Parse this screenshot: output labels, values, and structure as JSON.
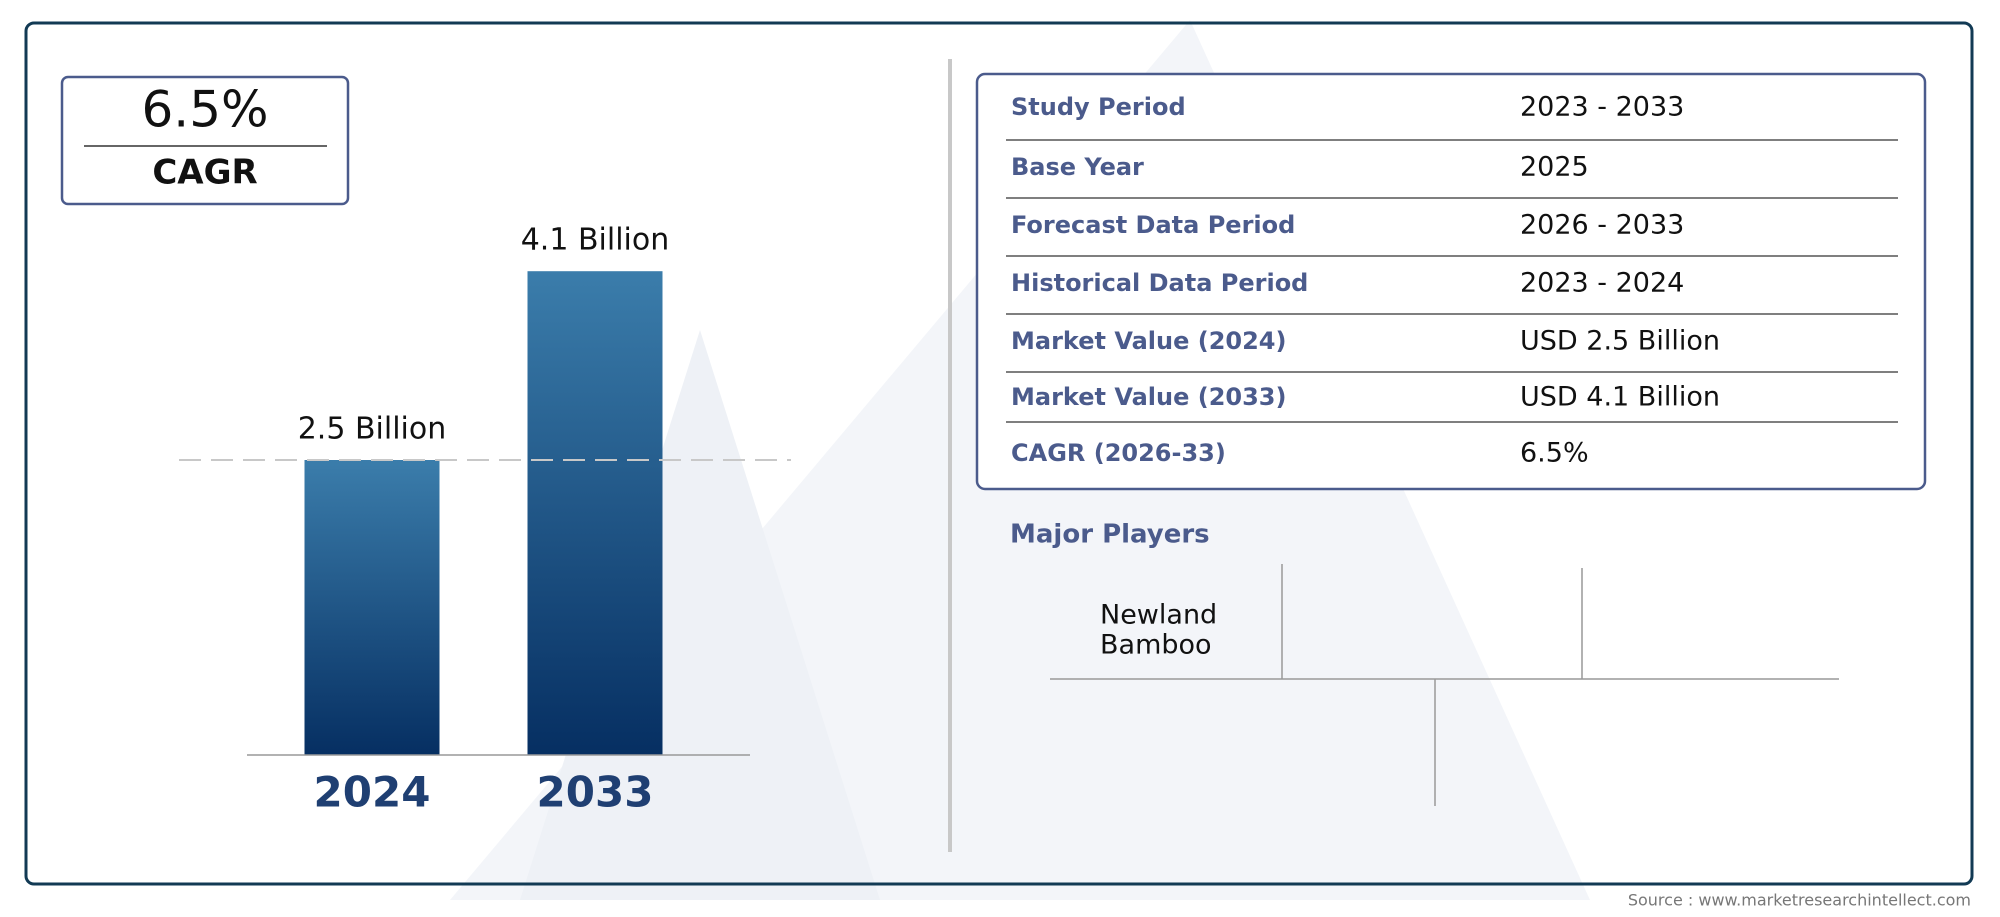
{
  "chart_data": {
    "type": "bar",
    "categories": [
      "2024",
      "2033"
    ],
    "values": [
      2.5,
      4.1
    ],
    "value_labels": [
      "2.5 Billion",
      "4.1 Billion"
    ]
  },
  "cagr_box": {
    "value": "6.5%",
    "label": "CAGR"
  },
  "table": {
    "rows": [
      [
        "Study Period",
        "2023 - 2033"
      ],
      [
        "Base Year",
        "2025"
      ],
      [
        "Forecast Data Period",
        "2026 - 2033"
      ],
      [
        "Historical Data Period",
        "2023 - 2024"
      ],
      [
        "Market Value (2024)",
        "USD 2.5 Billion"
      ],
      [
        "Market Value (2033)",
        "USD 4.1 Billion"
      ],
      [
        "CAGR (2026-33)",
        "6.5%"
      ]
    ]
  },
  "major_players": {
    "title": "Major Players",
    "players": [
      [
        "Newland",
        "Bamboo"
      ]
    ]
  },
  "source": "Source : www.marketresearchintellect.com"
}
